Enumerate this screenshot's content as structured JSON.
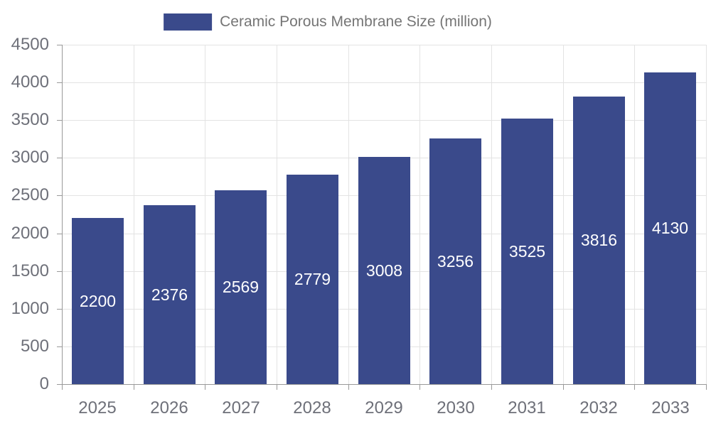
{
  "chart_data": {
    "type": "bar",
    "title": "Ceramic Porous Membrane Size (million)",
    "legend": [
      "Ceramic Porous Membrane Size (million)"
    ],
    "legend_position": "top",
    "categories": [
      "2025",
      "2026",
      "2027",
      "2028",
      "2029",
      "2030",
      "2031",
      "2032",
      "2033"
    ],
    "values": [
      2200,
      2376,
      2569,
      2779,
      3008,
      3256,
      3525,
      3816,
      4130
    ],
    "xlabel": "",
    "ylabel": "",
    "ylim": [
      0,
      4500
    ],
    "yticks": [
      0,
      500,
      1000,
      1500,
      2000,
      2500,
      3000,
      3500,
      4000,
      4500
    ],
    "grid": true,
    "colors": {
      "bar": "#3A4A8B",
      "bar_value_label": "#FFFFFF",
      "legend_text": "#757575",
      "axis_text": "#6E7079",
      "grid_line": "#E3E3E3",
      "axis_line": "#999999"
    }
  }
}
